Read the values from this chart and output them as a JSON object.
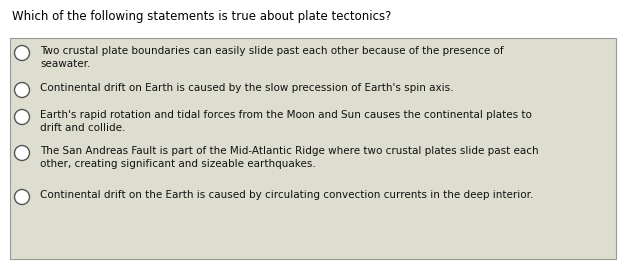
{
  "title": "Which of the following statements is true about plate tectonics?",
  "title_fontsize": 8.5,
  "title_color": "#000000",
  "bg_color": "#ffffff",
  "box_facecolor": "#deded0",
  "box_edgecolor": "#999999",
  "options": [
    "Two crustal plate boundaries can easily slide past each other because of the presence of\nseawater.",
    "Continental drift on Earth is caused by the slow precession of Earth's spin axis.",
    "Earth's rapid rotation and tidal forces from the Moon and Sun causes the continental plates to\ndrift and collide.",
    "The San Andreas Fault is part of the Mid-Atlantic Ridge where two crustal plates slide past each\nother, creating significant and sizeable earthquakes.",
    "Continental drift on the Earth is caused by circulating convection currents in the deep interior."
  ],
  "option_fontsize": 7.5,
  "circle_facecolor": "#ffffff",
  "circle_edgecolor": "#555555",
  "text_color": "#111111",
  "fig_width": 6.24,
  "fig_height": 2.64,
  "dpi": 100
}
